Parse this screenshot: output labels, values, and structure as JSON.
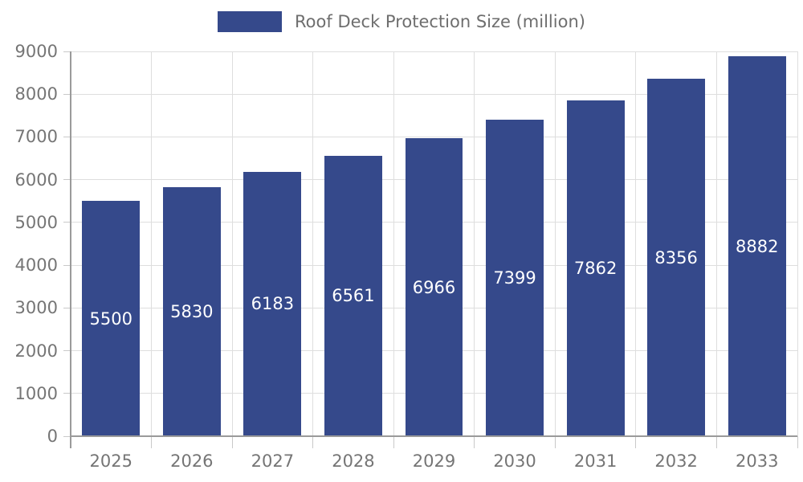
{
  "legend": {
    "label": "Roof Deck Protection Size (million)"
  },
  "chart_data": {
    "type": "bar",
    "title": "Roof Deck Protection Size (million)",
    "categories": [
      "2025",
      "2026",
      "2027",
      "2028",
      "2029",
      "2030",
      "2031",
      "2032",
      "2033"
    ],
    "values": [
      5500,
      5830,
      6183,
      6561,
      6966,
      7399,
      7862,
      8356,
      8882
    ],
    "xlabel": "",
    "ylabel": "",
    "ylim": [
      0,
      9000
    ],
    "yticks": [
      0,
      1000,
      2000,
      3000,
      4000,
      5000,
      6000,
      7000,
      8000,
      9000
    ],
    "grid": true,
    "legend_position": "top-center",
    "bar_color": "#35498b",
    "value_label_color": "#ffffff",
    "grid_color": "#dedede",
    "axis_color": "#9a9a9a",
    "tick_label_color": "#757575"
  }
}
